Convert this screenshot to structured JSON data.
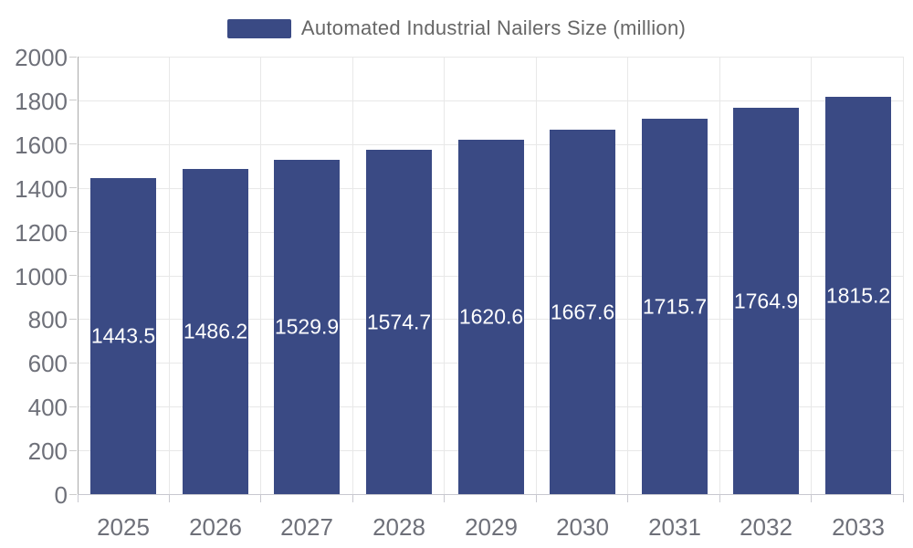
{
  "chart_data": {
    "type": "bar",
    "title": "Automated Industrial Nailers Size (million)",
    "legend_position": "top-center",
    "categories": [
      "2025",
      "2026",
      "2027",
      "2028",
      "2029",
      "2030",
      "2031",
      "2032",
      "2033"
    ],
    "series": [
      {
        "name": "Automated Industrial Nailers Size (million)",
        "values": [
          1443.5,
          1486.2,
          1529.9,
          1574.7,
          1620.6,
          1667.6,
          1715.7,
          1764.9,
          1815.2
        ]
      }
    ],
    "values": [
      1443.5,
      1486.2,
      1529.9,
      1574.7,
      1620.6,
      1667.6,
      1715.7,
      1764.9,
      1815.2
    ],
    "value_labels": [
      "1443.5",
      "1486.2",
      "1529.9",
      "1574.7",
      "1620.6",
      "1667.6",
      "1715.7",
      "1764.9",
      "1815.2"
    ],
    "xlabel": "",
    "ylabel": "",
    "ylim": [
      0,
      2000
    ],
    "y_ticks": [
      0,
      200,
      400,
      600,
      800,
      1000,
      1200,
      1400,
      1600,
      1800,
      2000
    ],
    "y_tick_labels": [
      "0",
      "200",
      "400",
      "600",
      "800",
      "1000",
      "1200",
      "1400",
      "1600",
      "1800",
      "2000"
    ],
    "grid": "horizontal and vertical gridlines on",
    "colors": {
      "bar": "#3a4a84",
      "value_label": "#ffffff",
      "axis_label": "#6e7079",
      "legend_text": "#666666",
      "gridline": "#e8e8e8",
      "y_axis_line": "#aaaaaa",
      "x_axis_line": "#c8c8cf",
      "background": "#ffffff"
    }
  }
}
